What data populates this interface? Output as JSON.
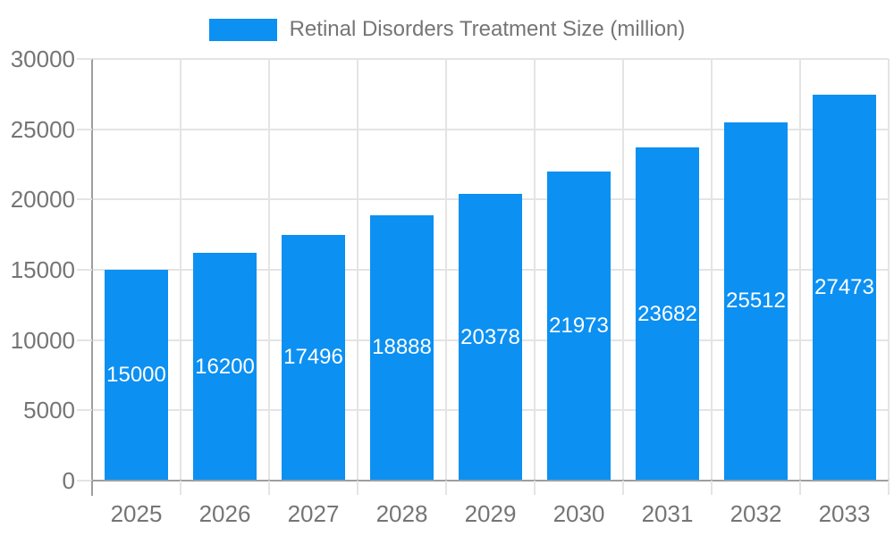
{
  "chart_data": {
    "type": "bar",
    "legend": "Retinal Disorders Treatment Size (million)",
    "legend_position": "top",
    "categories": [
      "2025",
      "2026",
      "2027",
      "2028",
      "2029",
      "2030",
      "2031",
      "2032",
      "2033"
    ],
    "values": [
      15000,
      16200,
      17496,
      18888,
      20378,
      21973,
      23682,
      25512,
      27473
    ],
    "ylim": [
      0,
      30000
    ],
    "ytick_step": 5000,
    "yticks": [
      0,
      5000,
      10000,
      15000,
      20000,
      25000,
      30000
    ],
    "grid": true,
    "bar_color": "#0c90f2",
    "bar_label_color": "#ffffff",
    "grid_color": "#e4e4e4",
    "axis_color": "#9e9e9e",
    "text_color": "#757575"
  }
}
